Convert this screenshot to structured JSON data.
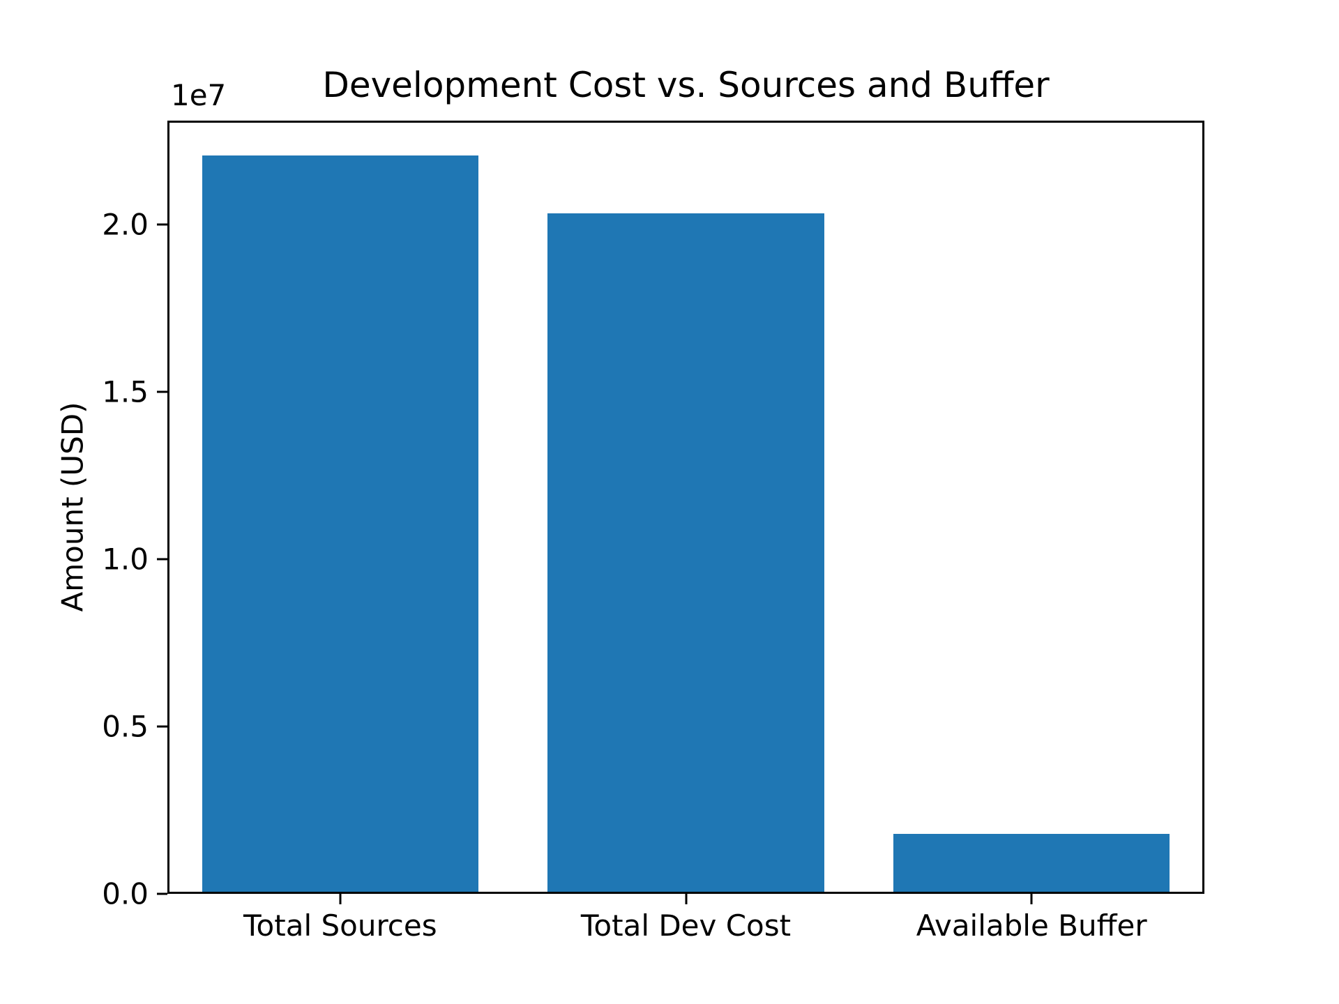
{
  "chart_data": {
    "type": "bar",
    "title": "Development Cost vs. Sources and Buffer",
    "xlabel": "",
    "ylabel": "Amount (USD)",
    "offset_text": "1e7",
    "categories": [
      "Total Sources",
      "Total Dev Cost",
      "Available Buffer"
    ],
    "values": [
      22000000,
      20270000,
      1730000
    ],
    "bar_color": "#1f77b4",
    "ylim": [
      0,
      23100000
    ],
    "xlim": [
      -0.5,
      2.5
    ],
    "bar_width_units": 0.8,
    "yticks": {
      "values": [
        0,
        5000000,
        10000000,
        15000000,
        20000000
      ],
      "labels": [
        "0.0",
        "0.5",
        "1.0",
        "1.5",
        "2.0"
      ]
    },
    "grid": false,
    "legend": null
  }
}
